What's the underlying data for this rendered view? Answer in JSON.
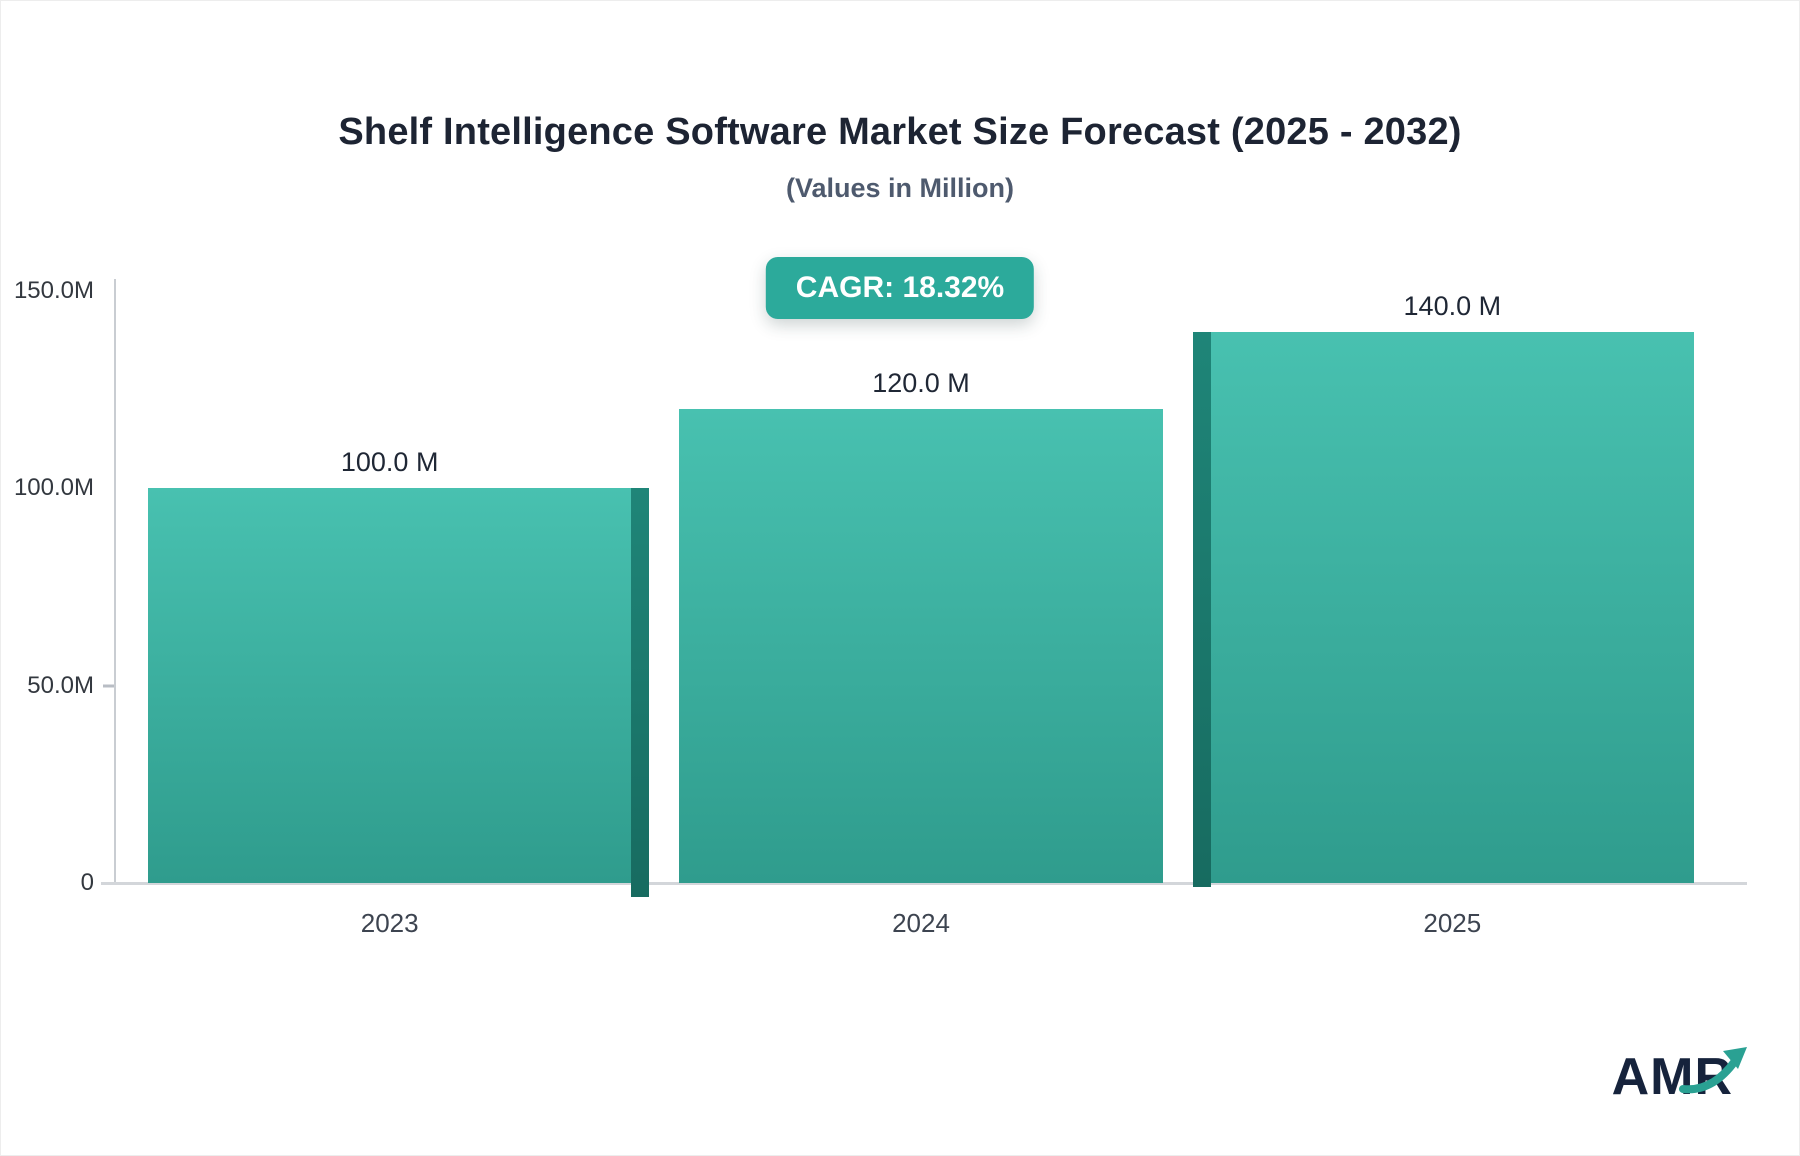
{
  "title": "Shelf Intelligence Software Market Size Forecast (2025 - 2032)",
  "subtitle": "(Values in Million)",
  "cagr_badge": "CAGR: 18.32%",
  "logo": {
    "text": "AMR"
  },
  "colors": {
    "bar_top": "#48c1b0",
    "bar_bottom": "#2f9c8d",
    "bar_side": "#1d7e72",
    "badge_bg": "#2caa9b",
    "title_text": "#1d2433",
    "subtitle_text": "#4e5a6e",
    "axis_text": "#33383f",
    "logo_text": "#16233c",
    "logo_arrow": "#2aa193"
  },
  "chart_data": {
    "type": "bar",
    "title": "Shelf Intelligence Software Market Size Forecast (2025 - 2032)",
    "subtitle": "(Values in Million)",
    "annotation": "CAGR: 18.32%",
    "categories": [
      "2023",
      "2024",
      "2025"
    ],
    "values": [
      100.0,
      120.0,
      140.0
    ],
    "value_labels": [
      "100.0 M",
      "120.0 M",
      "140.0 M"
    ],
    "xlabel": "",
    "ylabel": "",
    "ylim": [
      0,
      150
    ],
    "yticks": [
      {
        "label": "0",
        "value": 0,
        "tick_mark": false
      },
      {
        "label": "50.0M",
        "value": 50,
        "tick_mark": true
      },
      {
        "label": "100.0M",
        "value": 100,
        "tick_mark": false
      },
      {
        "label": "150.0M",
        "value": 150,
        "tick_mark": false
      }
    ],
    "bar_3d_sides": [
      "right",
      "none",
      "left"
    ],
    "grid": false,
    "legend": false
  }
}
